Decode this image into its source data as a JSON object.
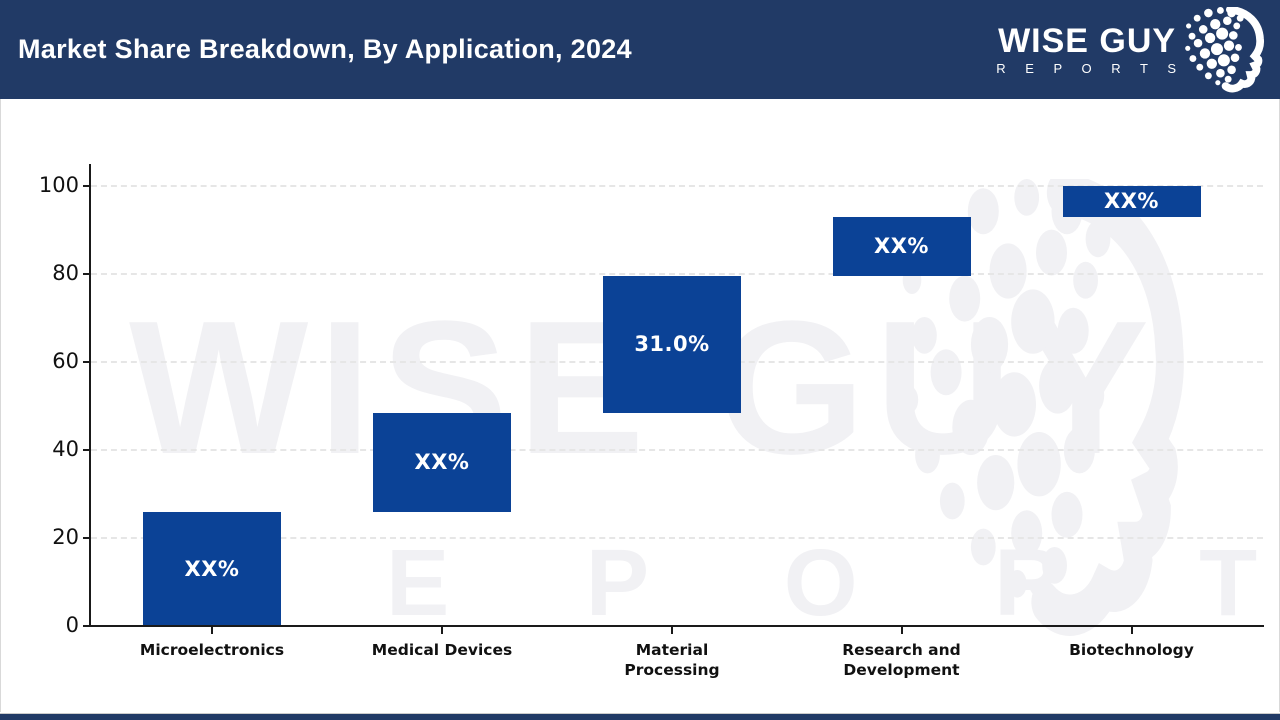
{
  "header": {
    "title": "Market Share Breakdown, By Application, 2024",
    "logo": {
      "line1": "WISE GUY",
      "line2": "R E P O R T S"
    }
  },
  "watermark": {
    "line1": "WISE GUY",
    "line2": "R E P O R T S"
  },
  "colors": {
    "header_bg": "#213a66",
    "footer_bg": "#213a66",
    "bar": "#0b4296",
    "bar_label_text": "#ffffff",
    "gridline": "#e6e6e6",
    "axis": "#1a1a1a",
    "watermark": "#f1f1f4"
  },
  "chart_data": {
    "type": "bar",
    "subtype": "waterfall",
    "title": "Market Share Breakdown, By Application, 2024",
    "xlabel": "",
    "ylabel": "",
    "categories": [
      "Microelectronics",
      "Medical Devices",
      "Material Processing",
      "Research and Development",
      "Biotechnology"
    ],
    "category_lines": [
      [
        "Microelectronics"
      ],
      [
        "Medical Devices"
      ],
      [
        "Material",
        "Processing"
      ],
      [
        "Research and",
        "Development"
      ],
      [
        "Biotechnology"
      ]
    ],
    "segments": [
      {
        "category": "Microelectronics",
        "start": 0,
        "end": 26,
        "label": "XX%"
      },
      {
        "category": "Medical Devices",
        "start": 26,
        "end": 48.5,
        "label": "XX%"
      },
      {
        "category": "Material Processing",
        "start": 48.5,
        "end": 79.5,
        "label": "31.0%"
      },
      {
        "category": "Research and Development",
        "start": 79.5,
        "end": 93,
        "label": "XX%"
      },
      {
        "category": "Biotechnology",
        "start": 93,
        "end": 100,
        "label": "XX%"
      }
    ],
    "y_ticks": [
      0,
      20,
      40,
      60,
      80,
      100
    ],
    "ylim": [
      0,
      105
    ],
    "grid": "horizontal dashed",
    "legend": "none",
    "bar_color": "#0b4296",
    "label_placement": "inside center, white bold"
  }
}
